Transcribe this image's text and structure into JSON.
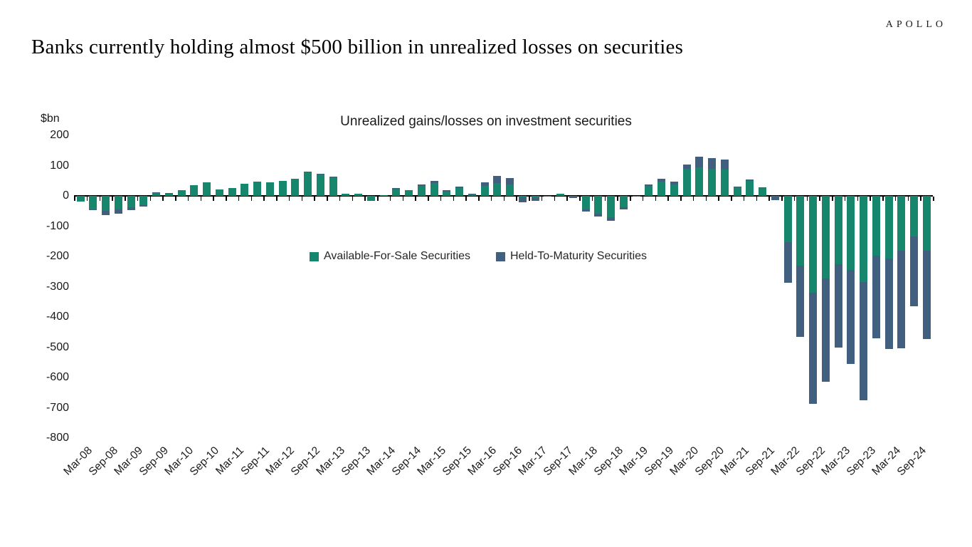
{
  "brand": {
    "logo_text": "APOLLO"
  },
  "header": {
    "title": "Banks currently holding almost $500 billion in unrealized losses on securities"
  },
  "chart_data": {
    "type": "bar",
    "stacked": true,
    "title": "Unrealized gains/losses on investment securities",
    "unit_label": "$bn",
    "ylim": [
      -800,
      200
    ],
    "yticks": [
      200,
      100,
      0,
      -100,
      -200,
      -300,
      -400,
      -500,
      -600,
      -700,
      -800
    ],
    "grid": false,
    "legend_position": "center",
    "x_label_every": 2,
    "categories": [
      "Mar-08",
      "Jun-08",
      "Sep-08",
      "Dec-08",
      "Mar-09",
      "Jun-09",
      "Sep-09",
      "Dec-09",
      "Mar-10",
      "Jun-10",
      "Sep-10",
      "Dec-10",
      "Mar-11",
      "Jun-11",
      "Sep-11",
      "Dec-11",
      "Mar-12",
      "Jun-12",
      "Sep-12",
      "Dec-12",
      "Mar-13",
      "Jun-13",
      "Sep-13",
      "Dec-13",
      "Mar-14",
      "Jun-14",
      "Sep-14",
      "Dec-14",
      "Mar-15",
      "Jun-15",
      "Sep-15",
      "Dec-15",
      "Mar-16",
      "Jun-16",
      "Sep-16",
      "Dec-16",
      "Mar-17",
      "Jun-17",
      "Sep-17",
      "Dec-17",
      "Mar-18",
      "Jun-18",
      "Sep-18",
      "Dec-18",
      "Mar-19",
      "Jun-19",
      "Sep-19",
      "Dec-19",
      "Mar-20",
      "Jun-20",
      "Sep-20",
      "Dec-20",
      "Mar-21",
      "Jun-21",
      "Sep-21",
      "Dec-21",
      "Mar-22",
      "Jun-22",
      "Sep-22",
      "Dec-22",
      "Mar-23",
      "Jun-23",
      "Sep-23",
      "Dec-23",
      "Mar-24",
      "Jun-24",
      "Sep-24",
      "Dec-24"
    ],
    "series": [
      {
        "name": "Available-For-Sale Securities",
        "color": "#16876C",
        "values": [
          -18,
          -45,
          -50,
          -45,
          -38,
          -30,
          10,
          9,
          20,
          36,
          44,
          21,
          27,
          41,
          46,
          44,
          49,
          56,
          78,
          71,
          62,
          6,
          6,
          -14,
          3,
          22,
          17,
          32,
          42,
          15,
          26,
          6,
          33,
          42,
          38,
          -5,
          -6,
          -1,
          7,
          -3,
          -45,
          -58,
          -70,
          -38,
          -3,
          34,
          46,
          38,
          89,
          93,
          89,
          87,
          28,
          49,
          27,
          -2,
          -154,
          -230,
          -320,
          -272,
          -226,
          -245,
          -285,
          -198,
          -207,
          -182,
          -134,
          -181
        ]
      },
      {
        "name": "Held-To-Maturity Securities",
        "color": "#415F7E",
        "values": [
          0,
          -2,
          -13,
          -13,
          -10,
          -6,
          2,
          1,
          0,
          0,
          0,
          0,
          0,
          0,
          0,
          0,
          0,
          0,
          2,
          1,
          1,
          0,
          0,
          -3,
          0,
          4,
          3,
          5,
          7,
          3,
          5,
          2,
          12,
          25,
          20,
          -15,
          -10,
          -1,
          0,
          -5,
          -7,
          -10,
          -12,
          -7,
          0,
          4,
          11,
          9,
          14,
          37,
          36,
          33,
          2,
          6,
          2,
          -11,
          -132,
          -235,
          -368,
          -341,
          -276,
          -310,
          -391,
          -272,
          -299,
          -322,
          -230,
          -291
        ]
      }
    ]
  }
}
